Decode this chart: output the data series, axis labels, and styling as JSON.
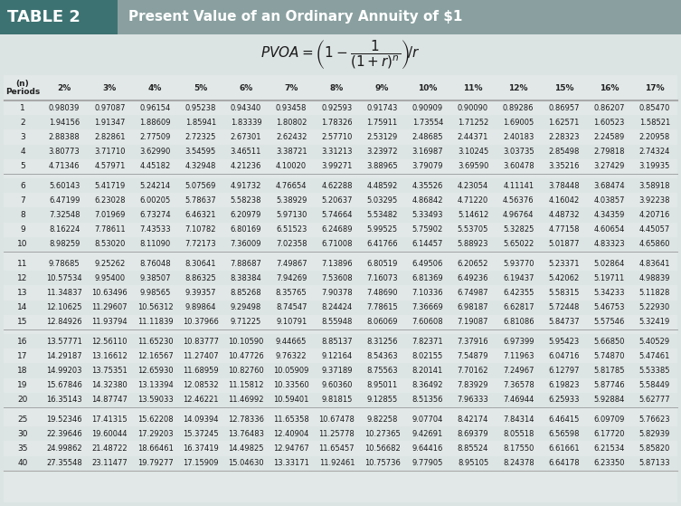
{
  "title_left": "TABLE 2",
  "title_right": "Present Value of an Ordinary Annuity of $1",
  "col_headers": [
    "(n)\nPeriods",
    "2%",
    "3%",
    "4%",
    "5%",
    "6%",
    "7%",
    "8%",
    "9%",
    "10%",
    "11%",
    "12%",
    "15%",
    "16%",
    "17%"
  ],
  "rows": [
    [
      1,
      0.98039,
      0.97087,
      0.96154,
      0.95238,
      0.9434,
      0.93458,
      0.92593,
      0.91743,
      0.90909,
      0.9009,
      0.89286,
      0.86957,
      0.86207,
      0.8547
    ],
    [
      2,
      1.94156,
      1.91347,
      1.88609,
      1.85941,
      1.83339,
      1.80802,
      1.78326,
      1.75911,
      1.73554,
      1.71252,
      1.69005,
      1.62571,
      1.60523,
      1.58521
    ],
    [
      3,
      2.88388,
      2.82861,
      2.77509,
      2.72325,
      2.67301,
      2.62432,
      2.5771,
      2.53129,
      2.48685,
      2.44371,
      2.40183,
      2.28323,
      2.24589,
      2.20958
    ],
    [
      4,
      3.80773,
      3.7171,
      3.6299,
      3.54595,
      3.46511,
      3.38721,
      3.31213,
      3.23972,
      3.16987,
      3.10245,
      3.03735,
      2.85498,
      2.79818,
      2.74324
    ],
    [
      5,
      4.71346,
      4.57971,
      4.45182,
      4.32948,
      4.21236,
      4.1002,
      3.99271,
      3.88965,
      3.79079,
      3.6959,
      3.60478,
      3.35216,
      3.27429,
      3.19935
    ],
    [
      6,
      5.60143,
      5.41719,
      5.24214,
      5.07569,
      4.91732,
      4.76654,
      4.62288,
      4.48592,
      4.35526,
      4.23054,
      4.11141,
      3.78448,
      3.68474,
      3.58918
    ],
    [
      7,
      6.47199,
      6.23028,
      6.00205,
      5.78637,
      5.58238,
      5.38929,
      5.20637,
      5.03295,
      4.86842,
      4.7122,
      4.56376,
      4.16042,
      4.03857,
      3.92238
    ],
    [
      8,
      7.32548,
      7.01969,
      6.73274,
      6.46321,
      6.20979,
      5.9713,
      5.74664,
      5.53482,
      5.33493,
      5.14612,
      4.96764,
      4.48732,
      4.34359,
      4.20716
    ],
    [
      9,
      8.16224,
      7.78611,
      7.43533,
      7.10782,
      6.80169,
      6.51523,
      6.24689,
      5.99525,
      5.75902,
      5.53705,
      5.32825,
      4.77158,
      4.60654,
      4.45057
    ],
    [
      10,
      8.98259,
      8.5302,
      8.1109,
      7.72173,
      7.36009,
      7.02358,
      6.71008,
      6.41766,
      6.14457,
      5.88923,
      5.65022,
      5.01877,
      4.83323,
      4.6586
    ],
    [
      11,
      9.78685,
      9.25262,
      8.76048,
      8.30641,
      7.88687,
      7.49867,
      7.13896,
      6.80519,
      6.49506,
      6.20652,
      5.9377,
      5.23371,
      5.02864,
      4.83641
    ],
    [
      12,
      10.57534,
      9.954,
      9.38507,
      8.86325,
      8.38384,
      7.94269,
      7.53608,
      7.16073,
      6.81369,
      6.49236,
      6.19437,
      5.42062,
      5.19711,
      4.98839
    ],
    [
      13,
      11.34837,
      10.63496,
      9.98565,
      9.39357,
      8.85268,
      8.35765,
      7.90378,
      7.4869,
      7.10336,
      6.74987,
      6.42355,
      5.58315,
      5.34233,
      5.11828
    ],
    [
      14,
      12.10625,
      11.29607,
      10.56312,
      9.89864,
      9.29498,
      8.74547,
      8.24424,
      7.78615,
      7.36669,
      6.98187,
      6.62817,
      5.72448,
      5.46753,
      5.2293
    ],
    [
      15,
      12.84926,
      11.93794,
      11.11839,
      10.37966,
      9.71225,
      9.10791,
      8.55948,
      8.06069,
      7.60608,
      7.19087,
      6.81086,
      5.84737,
      5.57546,
      5.32419
    ],
    [
      16,
      13.57771,
      12.5611,
      11.6523,
      10.83777,
      10.1059,
      9.44665,
      8.85137,
      8.31256,
      7.82371,
      7.37916,
      6.97399,
      5.95423,
      5.6685,
      5.40529
    ],
    [
      17,
      14.29187,
      13.16612,
      12.16567,
      11.27407,
      10.47726,
      9.76322,
      9.12164,
      8.54363,
      8.02155,
      7.54879,
      7.11963,
      6.04716,
      5.7487,
      5.47461
    ],
    [
      18,
      14.99203,
      13.75351,
      12.6593,
      11.68959,
      10.8276,
      10.05909,
      9.37189,
      8.75563,
      8.20141,
      7.70162,
      7.24967,
      6.12797,
      5.81785,
      5.53385
    ],
    [
      19,
      15.67846,
      14.3238,
      13.13394,
      12.08532,
      11.15812,
      10.3356,
      9.6036,
      8.95011,
      8.36492,
      7.83929,
      7.36578,
      6.19823,
      5.87746,
      5.58449
    ],
    [
      20,
      16.35143,
      14.87747,
      13.59033,
      12.46221,
      11.46992,
      10.59401,
      9.81815,
      9.12855,
      8.51356,
      7.96333,
      7.46944,
      6.25933,
      5.92884,
      5.62777
    ],
    [
      25,
      19.52346,
      17.41315,
      15.62208,
      14.09394,
      12.78336,
      11.65358,
      10.67478,
      9.82258,
      9.07704,
      8.42174,
      7.84314,
      6.46415,
      6.09709,
      5.76623
    ],
    [
      30,
      22.39646,
      19.60044,
      17.29203,
      15.37245,
      13.76483,
      12.40904,
      11.25778,
      10.27365,
      9.42691,
      8.69379,
      8.05518,
      6.56598,
      6.1772,
      5.82939
    ],
    [
      35,
      24.99862,
      21.48722,
      18.66461,
      16.37419,
      14.49825,
      12.94767,
      11.65457,
      10.56682,
      9.64416,
      8.85524,
      8.1755,
      6.61661,
      6.21534,
      5.8582
    ],
    [
      40,
      27.35548,
      23.11477,
      19.79277,
      17.15909,
      15.0463,
      13.33171,
      11.92461,
      10.75736,
      9.77905,
      8.95105,
      8.24378,
      6.64178,
      6.2335,
      5.87133
    ]
  ],
  "teal_color": "#3d7272",
  "gray_color": "#8aa0a0",
  "bg_color": "#dce3e3",
  "table_bg": "#e2e8e8",
  "line_color": "#aaaaaa",
  "text_color": "#1a1a1a",
  "header_text_color": "#222222"
}
